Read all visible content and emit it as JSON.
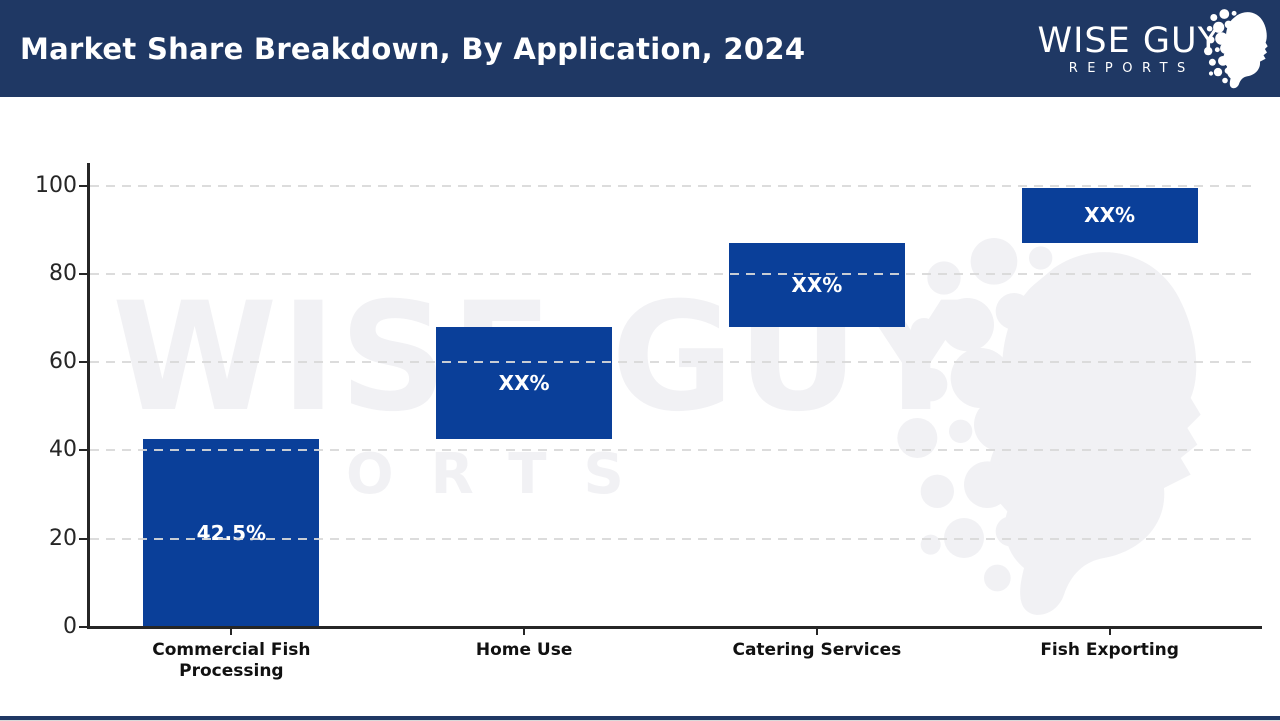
{
  "header": {
    "title": "Market Share Breakdown, By Application, 2024"
  },
  "brand": {
    "top": "WISE GUY",
    "bottom": "REPORTS"
  },
  "watermark": {
    "top": "WISE GUY",
    "bottom": "PORTS"
  },
  "chart_data": {
    "type": "bar",
    "subtype": "waterfall-progression",
    "title": "Market Share Breakdown, By Application, 2024",
    "categories": [
      "Commercial Fish\nProcessing",
      "Home Use",
      "Catering Services",
      "Fish Exporting"
    ],
    "bars": [
      {
        "category": "Commercial Fish\nProcessing",
        "base": 0,
        "top": 42.5,
        "label": "42.5%",
        "value_estimated": 42.5
      },
      {
        "category": "Home Use",
        "base": 42.5,
        "top": 68,
        "label": "XX%",
        "value_estimated": 25.5
      },
      {
        "category": "Catering Services",
        "base": 68,
        "top": 87,
        "label": "XX%",
        "value_estimated": 19
      },
      {
        "category": "Fish Exporting",
        "base": 87,
        "top": 99.5,
        "label": "XX%",
        "value_estimated": 12.5
      }
    ],
    "xlabel": "",
    "ylabel": "",
    "ylim": [
      0,
      105
    ],
    "yticks": [
      0,
      20,
      40,
      60,
      80,
      100
    ],
    "grid": "horizontal-dashed",
    "legend": "none"
  },
  "colors": {
    "page_bg": "#ffffff",
    "header_bg": "#1f3864",
    "footer": "#1f3864",
    "bar": "#0a3f99",
    "axis": "#262626",
    "grid": "#d9d9d9",
    "tick_text": "#262626",
    "category_text": "#111111",
    "bar_label_text": "#ffffff",
    "watermark": "#f1f1f4"
  }
}
